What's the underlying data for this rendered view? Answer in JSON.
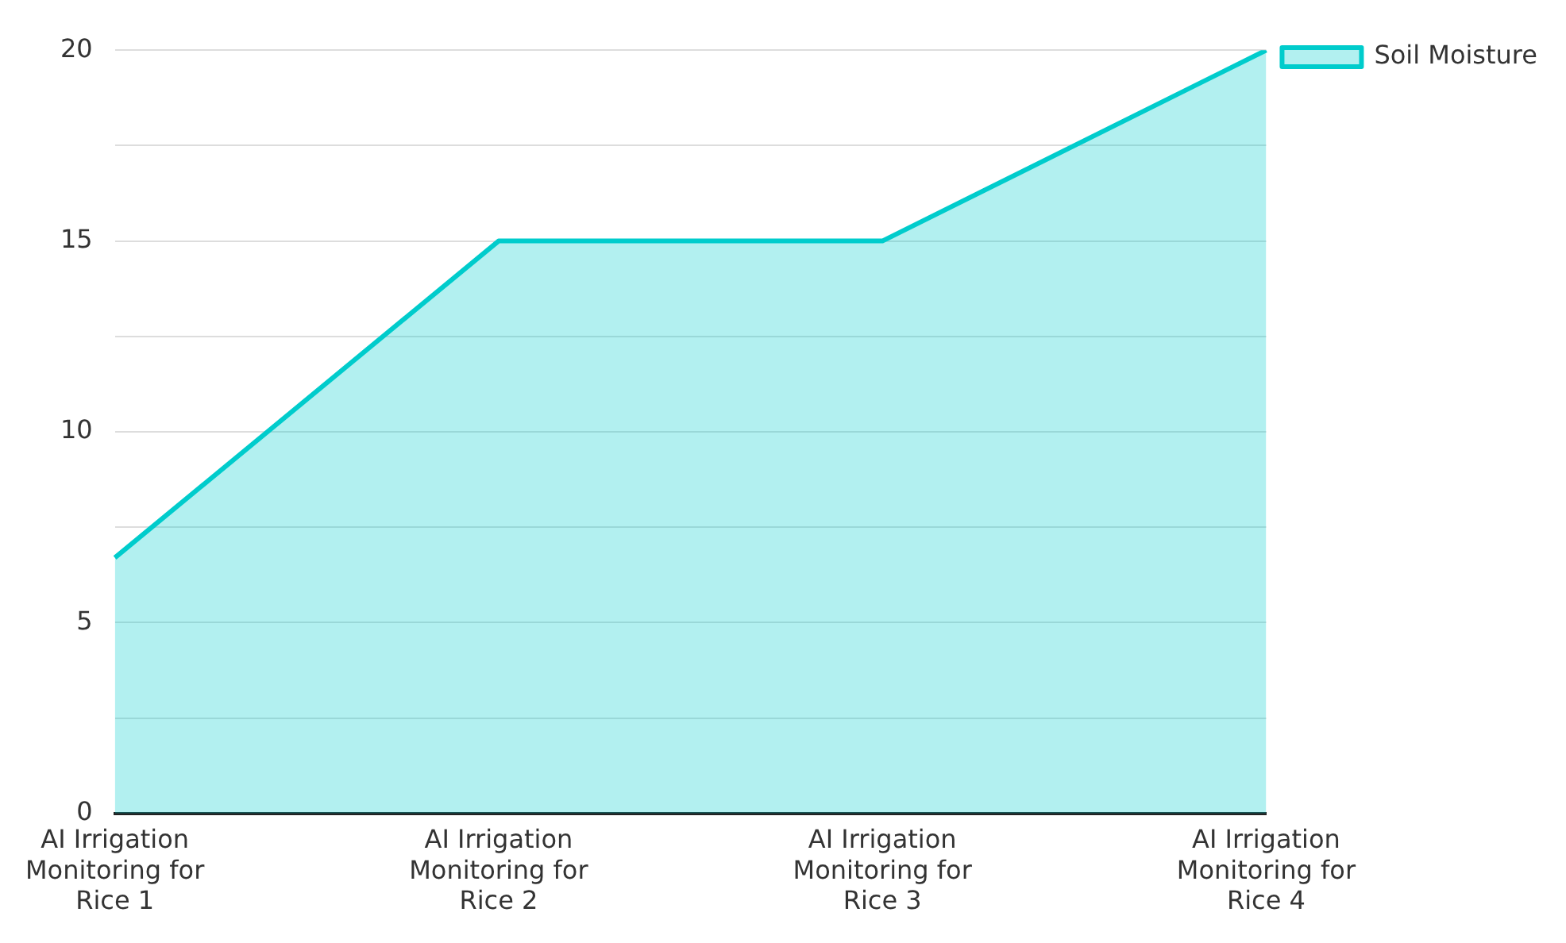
{
  "chart_data": {
    "type": "area",
    "categories": [
      "AI Irrigation Monitoring for Rice 1",
      "AI Irrigation Monitoring for Rice 2",
      "AI Irrigation Monitoring for Rice 3",
      "AI Irrigation Monitoring for Rice 4"
    ],
    "series": [
      {
        "name": "Soil Moisture",
        "color": "#00cccc",
        "values": [
          6.7,
          15,
          15,
          20
        ]
      }
    ],
    "ylim": [
      0,
      20
    ],
    "yticks": [
      0,
      {
        "value": 2.5,
        "label": null
      },
      5,
      {
        "value": 7.5,
        "label": null
      },
      10,
      {
        "value": 12.5,
        "label": null
      },
      15,
      {
        "value": 17.5,
        "label": null
      },
      20
    ],
    "grid": "y",
    "legend": "top right"
  }
}
